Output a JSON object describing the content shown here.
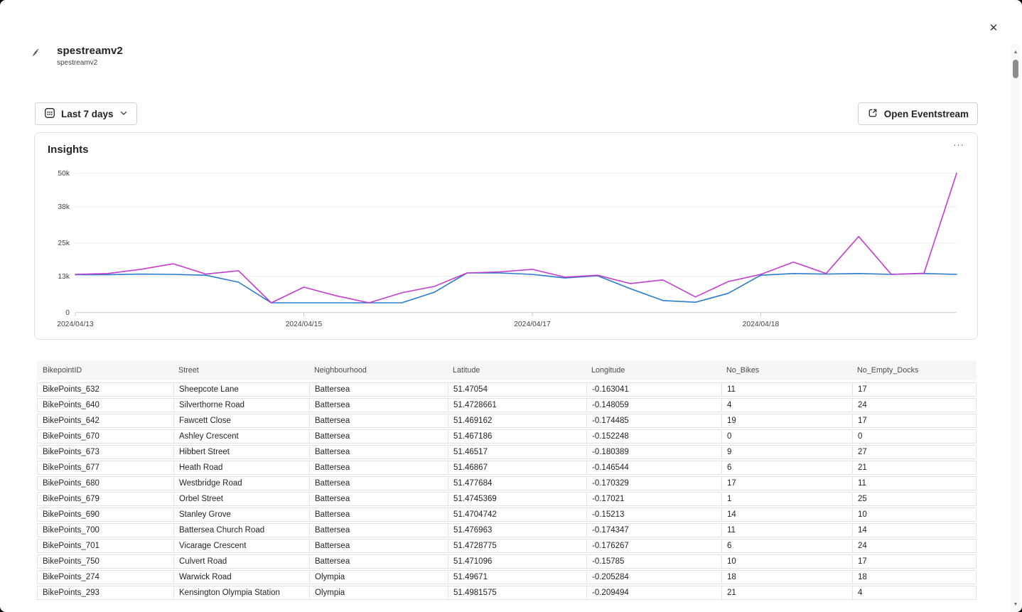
{
  "window": {
    "close_glyph": "✕",
    "scroll_up_glyph": "▲",
    "scroll_down_glyph": "▼"
  },
  "header": {
    "title": "spestreamv2",
    "subtitle": "spestreamv2"
  },
  "toolbar": {
    "time_range_label": "Last 7 days",
    "open_button_label": "Open Eventstream"
  },
  "insights": {
    "title": "Insights",
    "menu_glyph": "..."
  },
  "chart_data": {
    "type": "line",
    "title": "Insights",
    "xlabel": "",
    "ylabel": "",
    "ylim": [
      0,
      50000
    ],
    "grid": "horizontal",
    "legend": "none",
    "y_tick_labels": [
      "50k",
      "38k",
      "25k",
      "13k",
      "0"
    ],
    "y_tick_values": [
      50000,
      38000,
      25000,
      13000,
      0
    ],
    "x_tick_labels": [
      "2024/04/13",
      "2024/04/15",
      "2024/04/17",
      "2024/04/18"
    ],
    "x_tick_indices": [
      0,
      7,
      14,
      21
    ],
    "series": [
      {
        "name": "blue",
        "color": "#2b7cc9",
        "values": [
          13600,
          13600,
          13800,
          13700,
          13400,
          10900,
          3500,
          3500,
          3500,
          3500,
          3500,
          7300,
          14200,
          14200,
          13700,
          12400,
          13200,
          8600,
          4300,
          3700,
          6900,
          13400,
          14000,
          13800,
          14000,
          13700,
          14000,
          13700
        ]
      },
      {
        "name": "magenta",
        "color": "#c43ecd",
        "values": [
          13700,
          14000,
          15500,
          17500,
          13800,
          15000,
          3500,
          9100,
          6000,
          3500,
          7100,
          9400,
          14200,
          14600,
          15500,
          12700,
          13400,
          10400,
          11700,
          5600,
          11100,
          13700,
          18100,
          14000,
          27300,
          13700,
          14100,
          50000
        ]
      }
    ]
  },
  "table": {
    "columns": [
      "BikepointID",
      "Street",
      "Neighbourhood",
      "Latitude",
      "Longitude",
      "No_Bikes",
      "No_Empty_Docks"
    ],
    "rows": [
      [
        "BikePoints_632",
        "Sheepcote Lane",
        "Battersea",
        "51.47054",
        "-0.163041",
        "11",
        "17"
      ],
      [
        "BikePoints_640",
        "Silverthorne Road",
        "Battersea",
        "51.4728661",
        "-0.148059",
        "4",
        "24"
      ],
      [
        "BikePoints_642",
        "Fawcett Close",
        "Battersea",
        "51.469162",
        "-0.174485",
        "19",
        "17"
      ],
      [
        "BikePoints_670",
        "Ashley Crescent",
        "Battersea",
        "51.467186",
        "-0.152248",
        "0",
        "0"
      ],
      [
        "BikePoints_673",
        "Hibbert Street",
        "Battersea",
        "51.46517",
        "-0.180389",
        "9",
        "27"
      ],
      [
        "BikePoints_677",
        "Heath Road",
        "Battersea",
        "51.46867",
        "-0.146544",
        "6",
        "21"
      ],
      [
        "BikePoints_680",
        "Westbridge Road",
        "Battersea",
        "51.477684",
        "-0.170329",
        "17",
        "11"
      ],
      [
        "BikePoints_679",
        "Orbel Street",
        "Battersea",
        "51.4745369",
        "-0.17021",
        "1",
        "25"
      ],
      [
        "BikePoints_690",
        "Stanley Grove",
        "Battersea",
        "51.4704742",
        "-0.15213",
        "14",
        "10"
      ],
      [
        "BikePoints_700",
        "Battersea Church Road",
        "Battersea",
        "51.476963",
        "-0.174347",
        "11",
        "14"
      ],
      [
        "BikePoints_701",
        "Vicarage Crescent",
        "Battersea",
        "51.4728775",
        "-0.176267",
        "6",
        "24"
      ],
      [
        "BikePoints_750",
        "Culvert Road",
        "Battersea",
        "51.471096",
        "-0.15785",
        "10",
        "17"
      ],
      [
        "BikePoints_274",
        "Warwick Road",
        "Olympia",
        "51.49671",
        "-0.205284",
        "18",
        "18"
      ],
      [
        "BikePoints_293",
        "Kensington Olympia Station",
        "Olympia",
        "51.4981575",
        "-0.209494",
        "21",
        "4"
      ]
    ]
  }
}
